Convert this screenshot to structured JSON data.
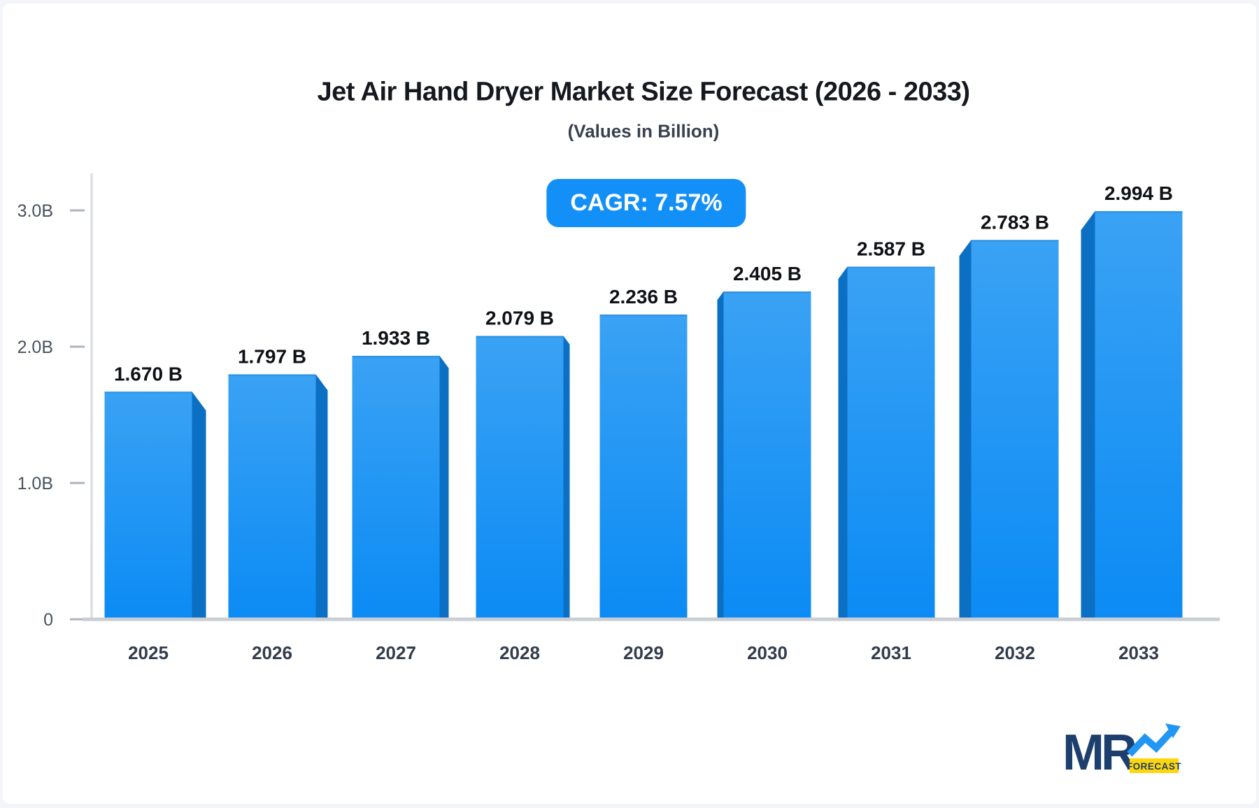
{
  "header": {
    "title": "Jet Air Hand Dryer Market Size Forecast (2026 - 2033)",
    "subtitle": "(Values in Billion)"
  },
  "chart_data": {
    "type": "bar",
    "title": "Jet Air Hand Dryer Market Size Forecast (2026 - 2033)",
    "subtitle": "(Values in Billion)",
    "cagr_badge": "CAGR: 7.57%",
    "categories": [
      "2025",
      "2026",
      "2027",
      "2028",
      "2029",
      "2030",
      "2031",
      "2032",
      "2033"
    ],
    "values": [
      1.67,
      1.797,
      1.933,
      2.079,
      2.236,
      2.405,
      2.587,
      2.783,
      2.994
    ],
    "data_labels": [
      "1.670 B",
      "1.797 B",
      "1.933 B",
      "2.079 B",
      "2.236 B",
      "2.405 B",
      "2.587 B",
      "2.783 B",
      "2.994 B"
    ],
    "ylabel": "",
    "xlabel": "",
    "ylim": [
      0,
      3.27
    ],
    "y_ticks": [
      {
        "value": 0,
        "label": "0"
      },
      {
        "value": 1,
        "label": "1.0B"
      },
      {
        "value": 2,
        "label": "2.0B"
      },
      {
        "value": 3,
        "label": "3.0B"
      }
    ],
    "grid": false,
    "legend": false,
    "colors": {
      "bar_top": "#3aa2f4",
      "bar_bottom": "#0b8bf4",
      "bar_top_edge": "#2f94e4",
      "bar_side": "#0b6fc3",
      "axis_line": "#dadde2",
      "baseline": "#c9ced5",
      "tick_dash": "#aeb4bc",
      "tick_label": "#49525f",
      "x_label": "#333c4b",
      "value_label": "#0e1116",
      "badge_bg": "#1390f8"
    }
  },
  "logo": {
    "mr": "MR",
    "forecast": "FORECAST",
    "navy": "#1c3f6e",
    "blue": "#2196f3",
    "yellow": "#ffd60a"
  }
}
